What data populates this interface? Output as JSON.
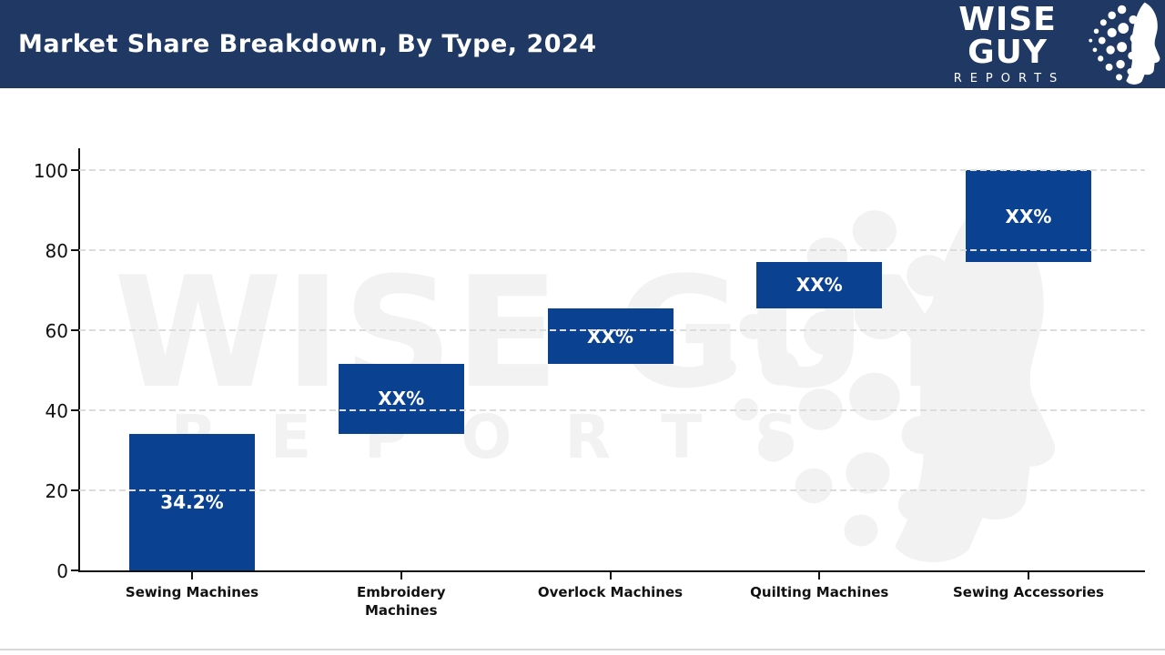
{
  "header": {
    "title": "Market Share Breakdown, By Type, 2024"
  },
  "logo": {
    "word": "WISE GUY",
    "reports": "REPORTS"
  },
  "watermark": {
    "word": "WISE GUY",
    "reports": "REPORTS"
  },
  "chart_data": {
    "type": "bar",
    "subtype": "waterfall-floating-bars",
    "title": "Market Share Breakdown, By Type, 2024",
    "categories": [
      "Sewing Machines",
      "Embroidery\nMachines",
      "Overlock Machines",
      "Quilting Machines",
      "Sewing Accessories"
    ],
    "series": [
      {
        "name": "Market Share %",
        "segments": [
          {
            "category": "Sewing Machines",
            "start": 0,
            "end": 34.2,
            "label": "34.2%"
          },
          {
            "category": "Embroidery Machines",
            "start": 34.2,
            "end": 51.5,
            "label": "XX%"
          },
          {
            "category": "Overlock Machines",
            "start": 51.5,
            "end": 65.5,
            "label": "XX%"
          },
          {
            "category": "Quilting Machines",
            "start": 65.5,
            "end": 77,
            "label": "XX%"
          },
          {
            "category": "Sewing Accessories",
            "start": 77,
            "end": 100,
            "label": "XX%"
          }
        ]
      }
    ],
    "ylim": [
      0,
      105
    ],
    "yticks": [
      0,
      20,
      40,
      60,
      80,
      100
    ],
    "xlabel": "",
    "ylabel": "",
    "grid": "horizontal-dashed",
    "legend": "none",
    "bar_color": "#0b4191",
    "bar_label_color": "#ffffff"
  },
  "colors": {
    "header_bg": "#1f3864",
    "bar": "#0b4191",
    "grid": "#dcdcdc",
    "axis": "#111111",
    "watermark": "#f2f2f3",
    "bottom_line": "#d8d8d8"
  }
}
